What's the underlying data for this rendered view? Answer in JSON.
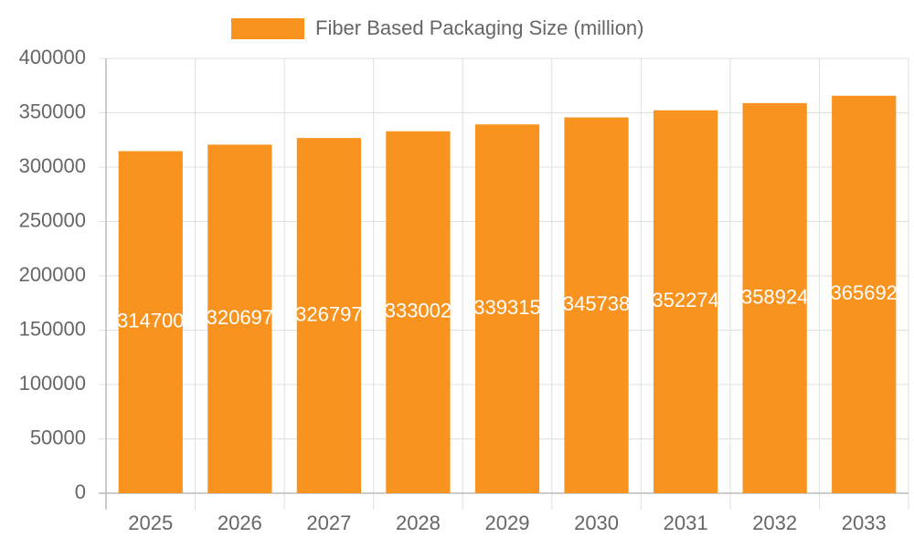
{
  "chart_data": {
    "type": "bar",
    "categories": [
      "2025",
      "2026",
      "2027",
      "2028",
      "2029",
      "2030",
      "2031",
      "2032",
      "2033"
    ],
    "series": [
      {
        "name": "Fiber Based Packaging Size (million)",
        "color": "#f7931e",
        "values": [
          314700,
          320697,
          326797,
          333002,
          339315,
          345738,
          352274,
          358924,
          365692
        ]
      }
    ],
    "ylim": [
      0,
      400000
    ],
    "yticks": [
      0,
      50000,
      100000,
      150000,
      200000,
      250000,
      300000,
      350000,
      400000
    ],
    "grid": true,
    "legend": "top"
  }
}
